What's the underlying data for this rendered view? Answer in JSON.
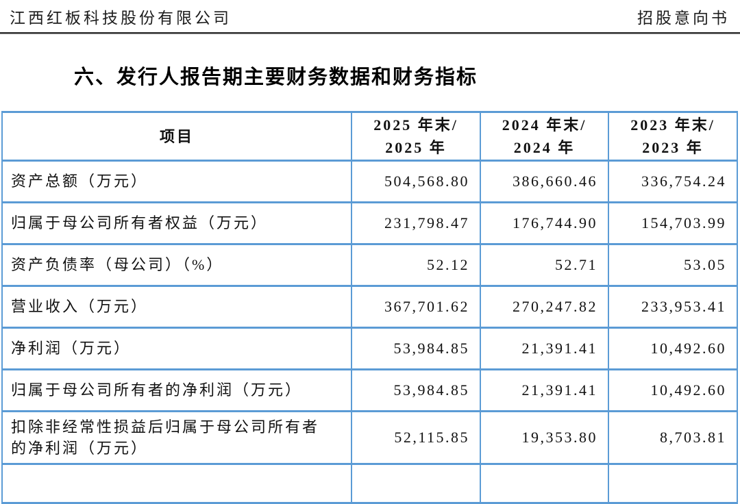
{
  "page_header": {
    "company_name": "江西红板科技股份有限公司",
    "doc_label": "招股意向书"
  },
  "section_title": "六、发行人报告期主要财务数据和财务指标",
  "colors": {
    "table_border": "#5b9bd5",
    "header_rule": "#2a2a2a",
    "text": "#111111"
  },
  "financial_table": {
    "item_header": "项目",
    "period_headers": [
      {
        "line1": "2025 年末/",
        "line2": "2025 年"
      },
      {
        "line1": "2024 年末/",
        "line2": "2024 年"
      },
      {
        "line1": "2023 年末/",
        "line2": "2023 年"
      }
    ],
    "rows": [
      {
        "label": "资产总额（万元）",
        "values": [
          "504,568.80",
          "386,660.46",
          "336,754.24"
        ]
      },
      {
        "label": "归属于母公司所有者权益（万元）",
        "values": [
          "231,798.47",
          "176,744.90",
          "154,703.99"
        ]
      },
      {
        "label": "资产负债率（母公司）（%）",
        "values": [
          "52.12",
          "52.71",
          "53.05"
        ]
      },
      {
        "label": "营业收入（万元）",
        "values": [
          "367,701.62",
          "270,247.82",
          "233,953.41"
        ]
      },
      {
        "label": "净利润（万元）",
        "values": [
          "53,984.85",
          "21,391.41",
          "10,492.60"
        ]
      },
      {
        "label": "归属于母公司所有者的净利润（万元）",
        "values": [
          "53,984.85",
          "21,391.41",
          "10,492.60"
        ]
      },
      {
        "label": "扣除非经常性损益后归属于母公司所有者\n的净利润（万元）",
        "values": [
          "52,115.85",
          "19,353.80",
          "8,703.81"
        ]
      }
    ]
  }
}
